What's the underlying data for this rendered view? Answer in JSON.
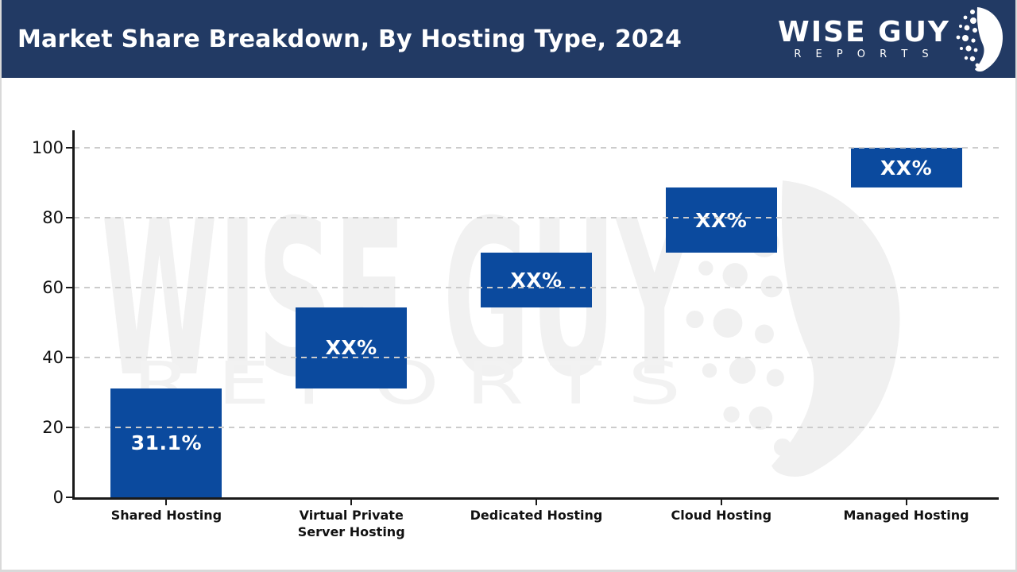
{
  "header": {
    "title": "Market Share Breakdown, By Hosting Type, 2024",
    "logo": {
      "line1": "WISE GUY",
      "line2": "R E P O R T S"
    }
  },
  "watermark": {
    "line1": "WISE GUY",
    "line2": "R E P O R T S"
  },
  "chart_data": {
    "type": "bar",
    "subtype": "waterfall",
    "title": "Market Share Breakdown, By Hosting Type, 2024",
    "categories": [
      "Shared Hosting",
      "Virtual Private\nServer Hosting",
      "Dedicated Hosting",
      "Cloud Hosting",
      "Managed Hosting"
    ],
    "segments": [
      {
        "category": "Shared Hosting",
        "start": 0,
        "end": 31.1,
        "label": "31.1%"
      },
      {
        "category": "Virtual Private Server Hosting",
        "start": 31.1,
        "end": 54.4,
        "label": "XX%"
      },
      {
        "category": "Dedicated Hosting",
        "start": 54.4,
        "end": 70.0,
        "label": "XX%"
      },
      {
        "category": "Cloud Hosting",
        "start": 70.0,
        "end": 88.6,
        "label": "XX%"
      },
      {
        "category": "Managed Hosting",
        "start": 88.6,
        "end": 100.0,
        "label": "XX%"
      }
    ],
    "xlabel": "",
    "ylabel": "",
    "ylim": [
      0,
      100
    ],
    "yticks": [
      0,
      20,
      40,
      60,
      80,
      100
    ],
    "grid": {
      "axis": "y",
      "style": "dashed",
      "drawn_over_bars": true
    },
    "legend": "none",
    "colors": {
      "bar": "#0b4a9e",
      "bar_label": "#ffffff",
      "header_bg": "#223a64",
      "grid": "#cccccc",
      "axis": "#1a1a1a",
      "tick_label": "#111111",
      "watermark": "#f1f1f1",
      "page_border": "#d9d9d9"
    }
  }
}
